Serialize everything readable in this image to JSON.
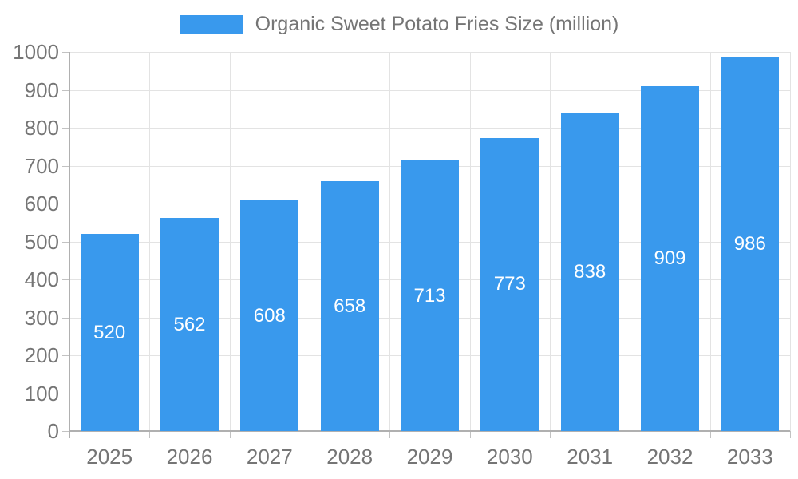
{
  "legend": {
    "label": "Organic Sweet Potato Fries Size (million)"
  },
  "chart_data": {
    "type": "bar",
    "title": "",
    "categories": [
      "2025",
      "2026",
      "2027",
      "2028",
      "2029",
      "2030",
      "2031",
      "2032",
      "2033"
    ],
    "series": [
      {
        "name": "Organic Sweet Potato Fries Size (million)",
        "values": [
          520,
          562,
          608,
          658,
          713,
          773,
          838,
          909,
          986
        ]
      }
    ],
    "xlabel": "",
    "ylabel": "",
    "ylim": [
      0,
      1000
    ],
    "ytick_step": 100,
    "ytick_labels": [
      "0",
      "100",
      "200",
      "300",
      "400",
      "500",
      "600",
      "700",
      "800",
      "900",
      "1000"
    ],
    "grid": true,
    "legend_position": "top-center",
    "value_label_position": "inside-center",
    "colors": {
      "bar": "#3999ed",
      "value_label": "#ffffff",
      "axis_text": "#757575",
      "axis_line": "#b0b0b0",
      "gridline": "#e3e3e3",
      "background": "#ffffff"
    }
  }
}
